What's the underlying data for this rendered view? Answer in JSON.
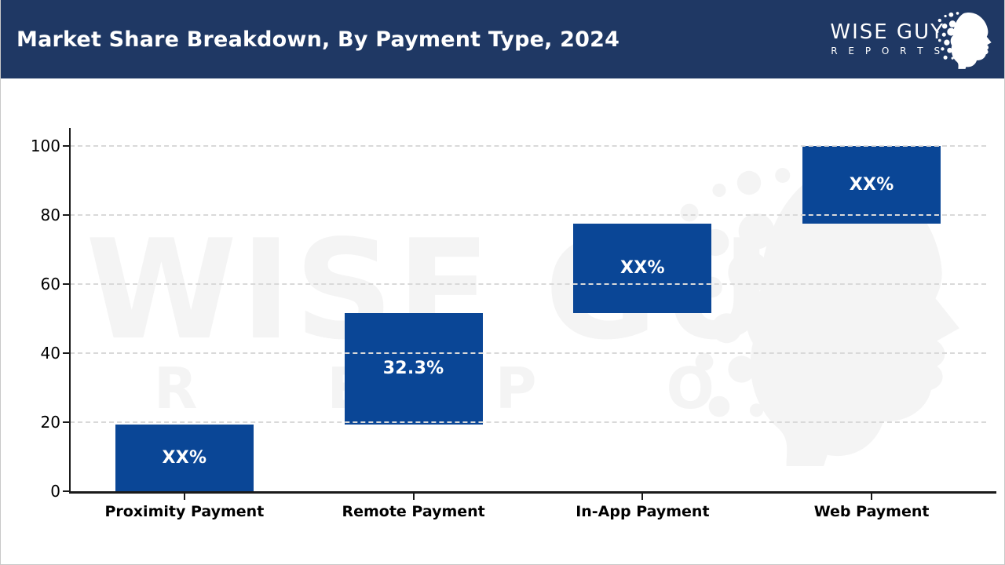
{
  "header": {
    "title": "Market Share Breakdown, By Payment Type, 2024",
    "logo": {
      "line1": "WISE GUY",
      "line2": "R E P O R T S"
    }
  },
  "watermark": {
    "line1": "WISE GUY",
    "line2": "R E P O R T S"
  },
  "colors": {
    "header_bg": "#1f3864",
    "bar": "#0a4696",
    "grid": "#d9d9d9",
    "axis": "#1a1a1a",
    "bar_label_text": "#ffffff",
    "watermark": "#f4f4f4"
  },
  "chart_data": {
    "type": "bar",
    "subtype": "waterfall",
    "title": "Market Share Breakdown, By Payment Type, 2024",
    "xlabel": "",
    "ylabel": "",
    "ylim": [
      0,
      105
    ],
    "yticks": [
      0,
      20,
      40,
      60,
      80,
      100
    ],
    "grid": "horizontal dashed",
    "legend": "none",
    "categories": [
      "Proximity Payment",
      "Remote Payment",
      "In-App Payment",
      "Web Payment"
    ],
    "segments": [
      {
        "category": "Proximity Payment",
        "start": 0,
        "end": 19.4,
        "label": "XX%"
      },
      {
        "category": "Remote Payment",
        "start": 19.4,
        "end": 51.7,
        "label": "32.3%",
        "value": 32.3
      },
      {
        "category": "In-App Payment",
        "start": 51.7,
        "end": 77.4,
        "label": "XX%"
      },
      {
        "category": "Web Payment",
        "start": 77.4,
        "end": 100,
        "label": "XX%"
      }
    ]
  }
}
